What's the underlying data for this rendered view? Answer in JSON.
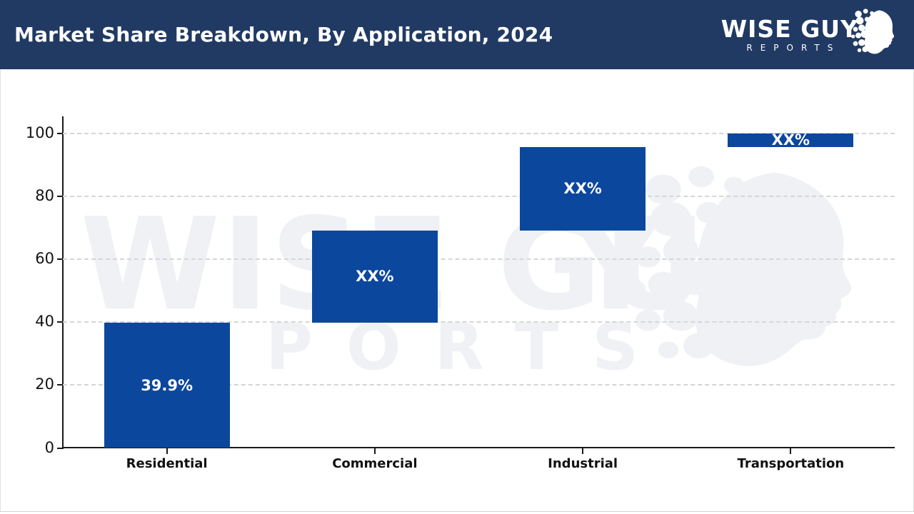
{
  "header": {
    "title": "Market Share Breakdown, By Application, 2024",
    "logo": {
      "brand": "WISE GUY",
      "sub": "REPORTS"
    }
  },
  "watermark": {
    "big": "WISE GU",
    "big2": "Y",
    "small": "PORTS"
  },
  "colors": {
    "header_bg": "#213a64",
    "bar": "#0b479d",
    "bar_label": "#ffffff",
    "grid": "#d6d6d6",
    "axis": "#1a1a1a",
    "watermark": "#eff1f4"
  },
  "chart_data": {
    "type": "bar",
    "subtype": "waterfall",
    "title": "Market Share Breakdown, By Application, 2024",
    "categories": [
      "Residential",
      "Commercial",
      "Industrial",
      "Transportation"
    ],
    "segments": [
      {
        "category": "Residential",
        "start": 0,
        "end": 39.9,
        "label": "39.9%"
      },
      {
        "category": "Commercial",
        "start": 39.9,
        "end": 69.1,
        "label": "XX%"
      },
      {
        "category": "Industrial",
        "start": 69.1,
        "end": 95.6,
        "label": "XX%"
      },
      {
        "category": "Transportation",
        "start": 95.6,
        "end": 100,
        "label": "XX%"
      }
    ],
    "ylim": [
      0,
      105
    ],
    "yticks": [
      0,
      20,
      40,
      60,
      80,
      100
    ],
    "grid": "horizontal-dashed",
    "legend": "none",
    "xlabel": "",
    "ylabel": ""
  }
}
